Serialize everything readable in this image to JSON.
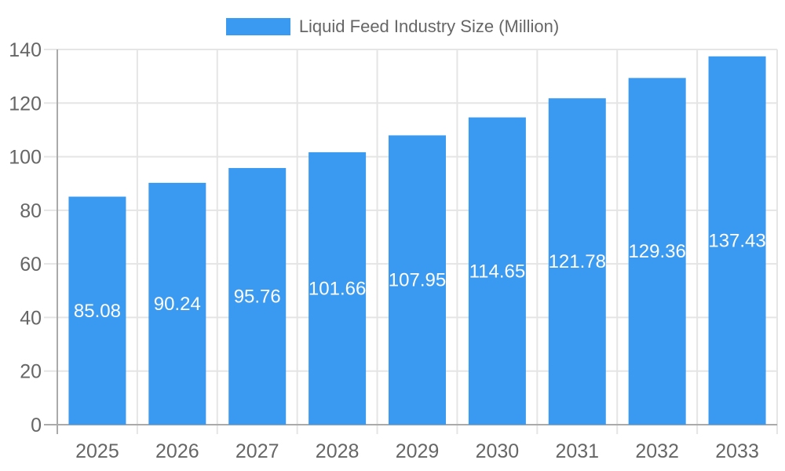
{
  "chart_data": {
    "type": "bar",
    "title": "Liquid Feed Industry Size (Million)",
    "categories": [
      "2025",
      "2026",
      "2027",
      "2028",
      "2029",
      "2030",
      "2031",
      "2032",
      "2033"
    ],
    "series": [
      {
        "name": "Liquid Feed Industry Size (Million)",
        "values": [
          85.08,
          90.24,
          95.76,
          101.66,
          107.95,
          114.65,
          121.78,
          129.36,
          137.43
        ]
      }
    ],
    "data_labels": [
      "85.08",
      "90.24",
      "95.76",
      "101.66",
      "107.95",
      "114.65",
      "121.78",
      "129.36",
      "137.43"
    ],
    "xlabel": "",
    "ylabel": "",
    "ylim": [
      0,
      140
    ],
    "yticks": [
      0,
      20,
      40,
      60,
      80,
      100,
      120,
      140
    ],
    "grid": true,
    "legend_position": "top-center",
    "colors": {
      "bar": "#3a99f0",
      "bar_label_text": "#ffffff",
      "axis_text": "#666666",
      "axis_line": "#aaaaaa",
      "grid_line": "#e5e5e5",
      "background": "#ffffff"
    }
  }
}
